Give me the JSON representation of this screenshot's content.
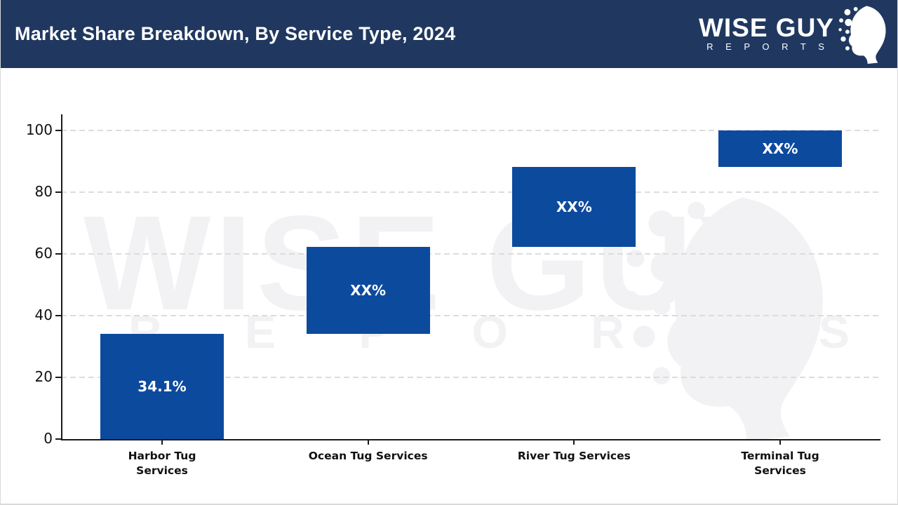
{
  "header": {
    "title": "Market Share Breakdown, By Service Type, 2024",
    "logo": {
      "line1": "WISE GUY",
      "line2": "R E P O R T S"
    }
  },
  "watermark": {
    "line1": "WISE GUY",
    "line2": "R E P O R T S"
  },
  "colors": {
    "header_bg": "#203860",
    "bar": "#0c4a9e",
    "grid": "#dcdcdc",
    "axis": "#1a1a1a",
    "watermark": "#f2f2f4",
    "bar_label": "#ffffff"
  },
  "chart_data": {
    "type": "bar",
    "subtype": "waterfall",
    "title": "Market Share Breakdown, By Service Type, 2024",
    "categories": [
      "Harbor Tug Services",
      "Ocean Tug Services",
      "River Tug Services",
      "Terminal Tug Services"
    ],
    "category_label_lines": [
      [
        "Harbor Tug",
        "Services"
      ],
      [
        "Ocean Tug Services"
      ],
      [
        "River Tug Services"
      ],
      [
        "Terminal Tug",
        "Services"
      ]
    ],
    "segments": [
      {
        "category": "Harbor Tug Services",
        "start": 0,
        "end": 34.1,
        "label": "34.1%"
      },
      {
        "category": "Ocean Tug Services",
        "start": 34.1,
        "end": 62.3,
        "label": "XX%"
      },
      {
        "category": "River Tug Services",
        "start": 62.3,
        "end": 88.2,
        "label": "XX%"
      },
      {
        "category": "Terminal Tug Services",
        "start": 88.2,
        "end": 100,
        "label": "XX%"
      }
    ],
    "xlabel": "",
    "ylabel": "",
    "ylim": [
      0,
      100
    ],
    "yticks": [
      0,
      20,
      40,
      60,
      80,
      100
    ],
    "grid": "horizontal-dashed",
    "legend": "none"
  }
}
